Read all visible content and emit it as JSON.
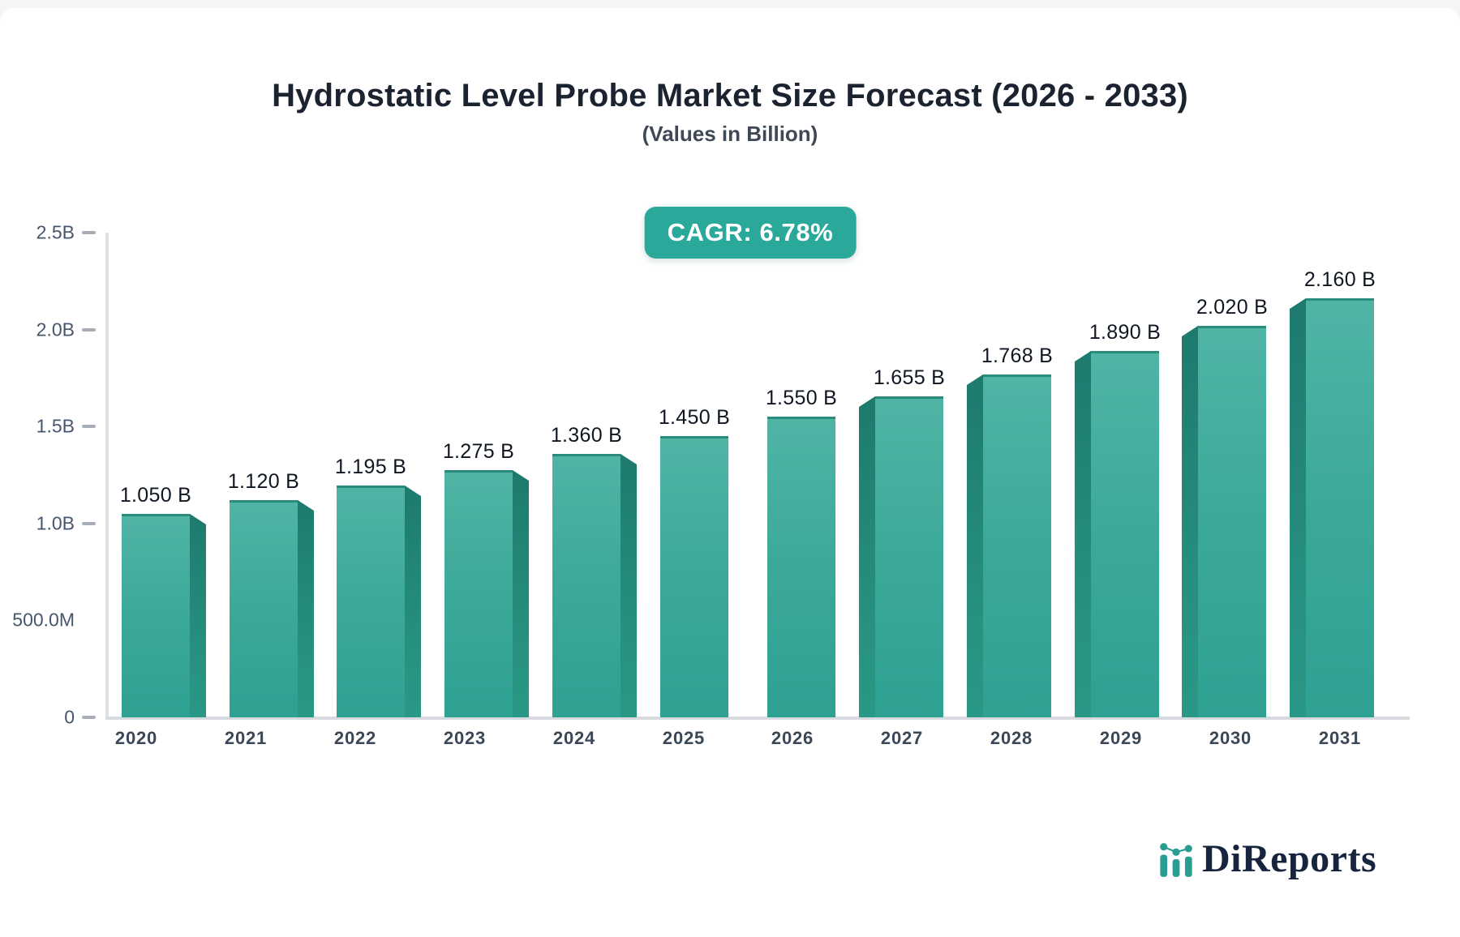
{
  "page": {
    "background": "#f4f6f8",
    "card_background": "#ffffff"
  },
  "header": {
    "title": "Hydrostatic Level Probe Market Size Forecast (2026 - 2033)",
    "subtitle": "(Values in Billion)",
    "cagr_label": "CAGR: 6.78%"
  },
  "branding": {
    "name": "DiReports",
    "icon": "bar-chart-trend-icon"
  },
  "colors": {
    "accent_teal": "#2aa99b",
    "bar_face_top": "#50b4a5",
    "bar_face_bottom": "#2ea192",
    "bar_face_edge": "#2b8c7e",
    "bar_side_dark": "#1d7a6d",
    "title_text": "#1b2330",
    "subtitle_text": "#3f4856",
    "axis_text": "#46566c",
    "year_text": "#3a4757",
    "value_text": "#0f1722",
    "axis_line": "#d7dadf",
    "logo_navy": "#17243d",
    "logo_teal": "#2a9d92"
  },
  "y_axis": {
    "ticks": [
      {
        "label": "2.5B",
        "value": 2.5,
        "dash": true
      },
      {
        "label": "2.0B",
        "value": 2.0,
        "dash": true
      },
      {
        "label": "1.5B",
        "value": 1.5,
        "dash": true
      },
      {
        "label": "1.0B",
        "value": 1.0,
        "dash": true
      },
      {
        "label": "500.0M",
        "value": 0.5,
        "dash": false
      },
      {
        "label": "0",
        "value": 0.0,
        "dash": true
      }
    ]
  },
  "chart_data": {
    "type": "bar",
    "title": "Hydrostatic Level Probe Market Size Forecast (2026 - 2033)",
    "subtitle": "(Values in Billion)",
    "cagr": "6.78%",
    "categories": [
      "2020",
      "2021",
      "2022",
      "2023",
      "2024",
      "2025",
      "2026",
      "2027",
      "2028",
      "2029",
      "2030",
      "2031"
    ],
    "values": [
      1.05,
      1.12,
      1.195,
      1.275,
      1.36,
      1.45,
      1.55,
      1.655,
      1.768,
      1.89,
      2.02,
      2.16
    ],
    "value_labels": [
      "1.050 B",
      "1.120 B",
      "1.195 B",
      "1.275 B",
      "1.360 B",
      "1.450 B",
      "1.550 B",
      "1.655 B",
      "1.768 B",
      "1.890 B",
      "2.020 B",
      "2.160 B"
    ],
    "xlabel": "",
    "ylabel": "",
    "ylim": [
      0,
      2.5
    ],
    "y_tick_labels": [
      "0",
      "500.0M",
      "1.0B",
      "1.5B",
      "2.0B",
      "2.5B"
    ],
    "grid": false,
    "legend": null,
    "bar_style": "3d-center-perspective"
  }
}
